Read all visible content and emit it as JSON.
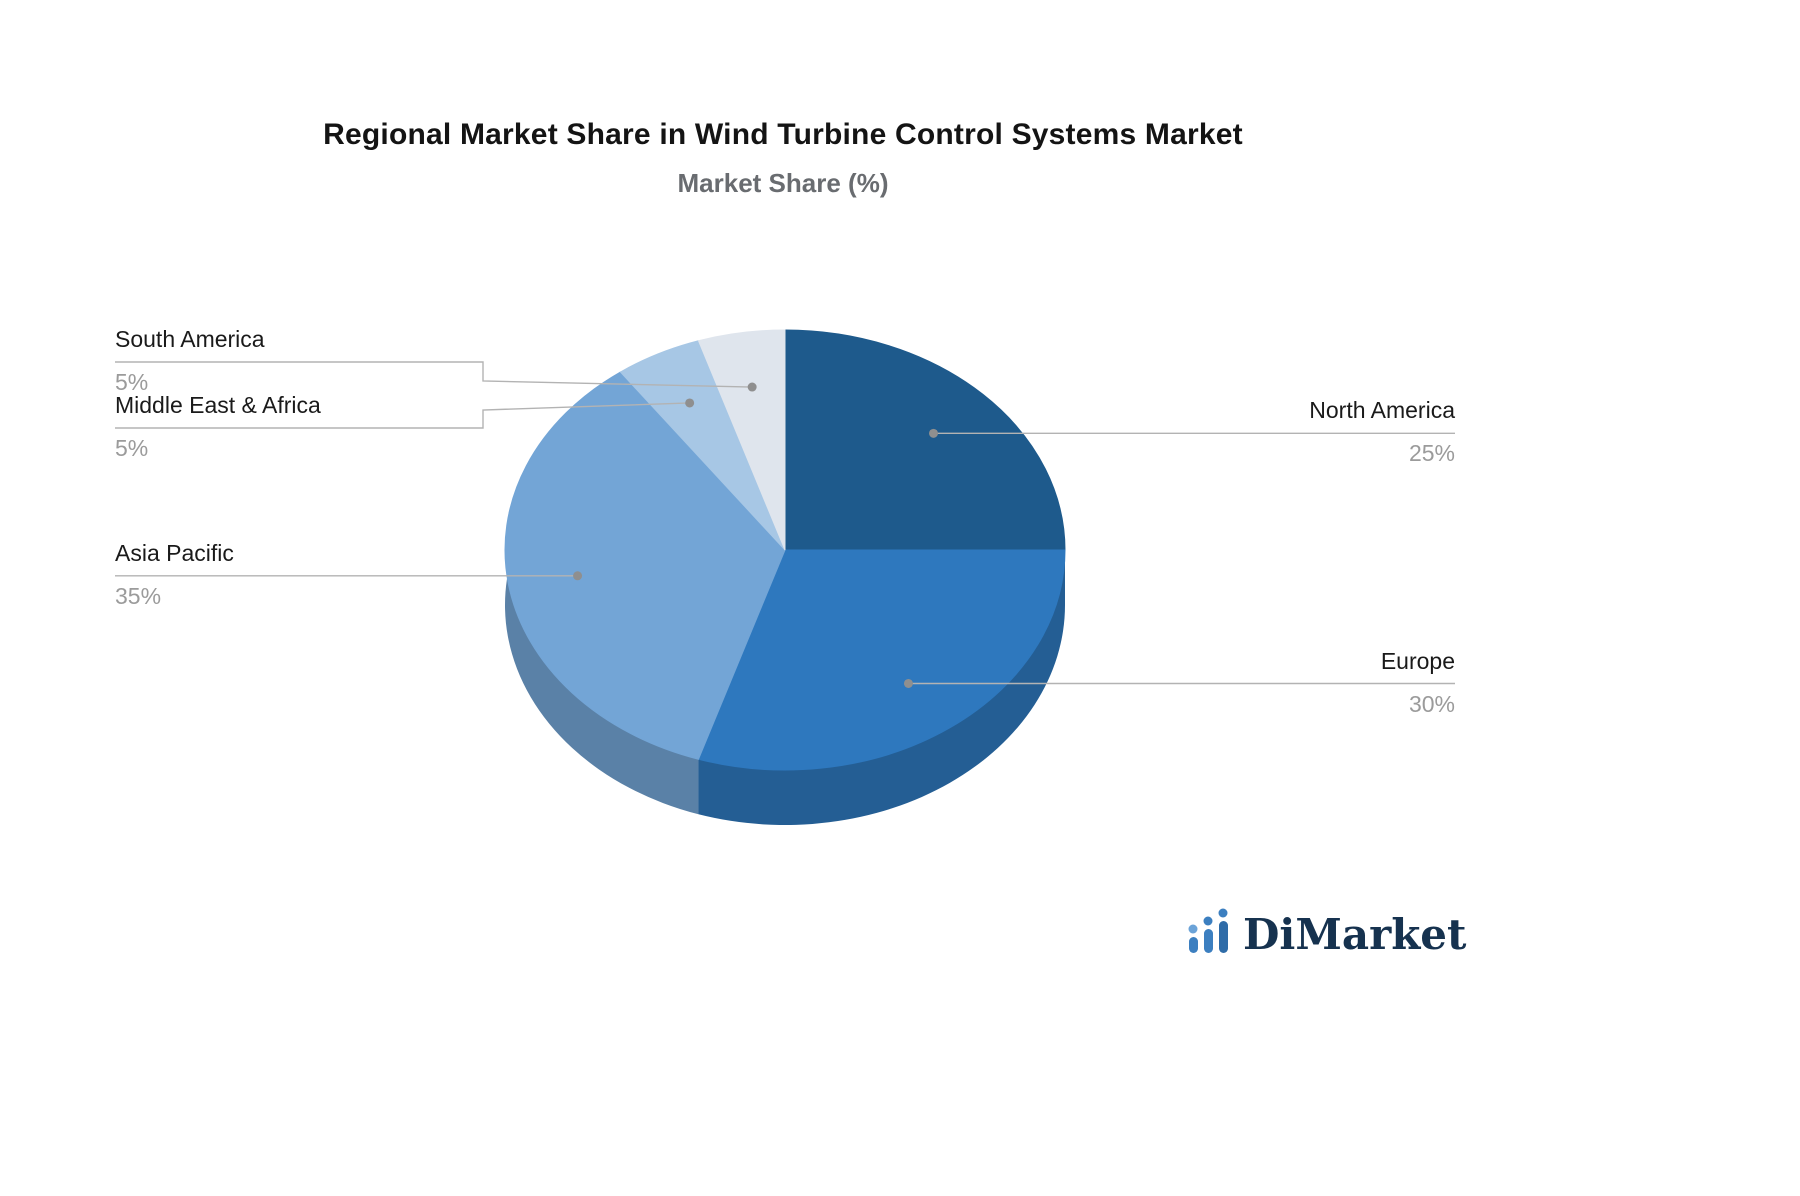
{
  "title": "Regional Market Share in Wind Turbine Control Systems Market",
  "subtitle": "Market Share (%)",
  "logo": {
    "text": "DiMarket",
    "icon": "bar-chart-icon"
  },
  "chart_data": {
    "type": "pie",
    "style": "3d-pie",
    "title": "Regional Market Share in Wind Turbine Control Systems Market",
    "subtitle": "Market Share (%)",
    "unit": "%",
    "start_angle_deg": 0,
    "direction": "clockwise",
    "legend_position": "callout-labels",
    "slices": [
      {
        "label": "North America",
        "value": 25,
        "value_text": "25%",
        "color": "#1e5a8c"
      },
      {
        "label": "Europe",
        "value": 30,
        "value_text": "30%",
        "color": "#2e78be"
      },
      {
        "label": "Asia Pacific",
        "value": 35,
        "value_text": "35%",
        "color": "#73a5d6"
      },
      {
        "label": "Middle East & Africa",
        "value": 5,
        "value_text": "5%",
        "color": "#a7c7e5"
      },
      {
        "label": "South America",
        "value": 5,
        "value_text": "5%",
        "color": "#dfe5ed"
      }
    ],
    "callout_line_color": "#b3b3b3",
    "callout_dot_color": "#8f8f8f"
  }
}
